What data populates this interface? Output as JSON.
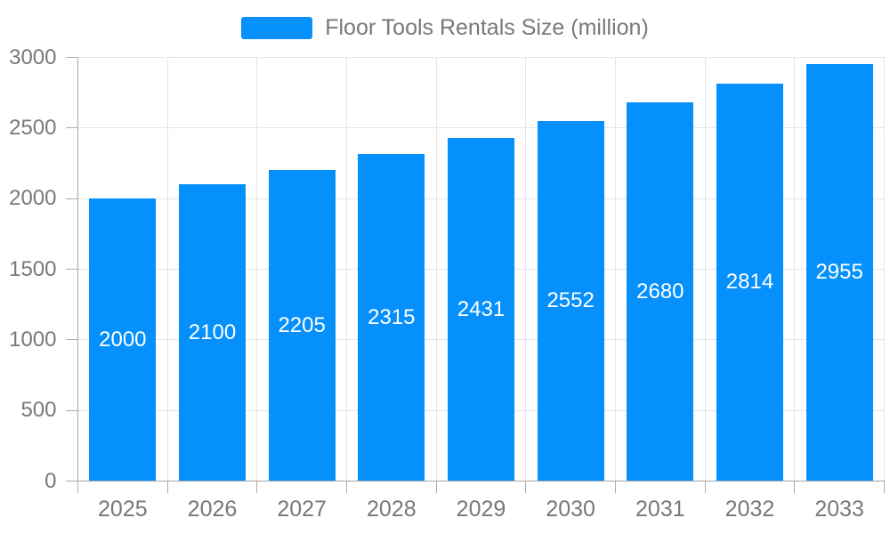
{
  "legend": {
    "label": "Floor Tools Rentals Size (million)"
  },
  "colors": {
    "bar": "#0590FB",
    "bar_label": "#FFFFFF",
    "axis_text": "#78787D",
    "legend_text": "#78787D",
    "axis_line": "#A6A6A6",
    "tick_line": "#ACACB0",
    "grid_line": "#E4E4E9"
  },
  "chart_data": {
    "type": "bar",
    "title": "Floor Tools Rentals Size (million)",
    "series_name": "Floor Tools Rentals Size (million)",
    "categories": [
      "2025",
      "2026",
      "2027",
      "2028",
      "2029",
      "2030",
      "2031",
      "2032",
      "2033"
    ],
    "values": [
      2000,
      2100,
      2205,
      2315,
      2431,
      2552,
      2680,
      2814,
      2955
    ],
    "xlabel": "",
    "ylabel": "",
    "ylim": [
      0,
      3000
    ],
    "y_ticks": [
      0,
      500,
      1000,
      1500,
      2000,
      2500,
      3000
    ],
    "grid": true,
    "legend_position": "top-center",
    "value_labels": "inside-center"
  }
}
